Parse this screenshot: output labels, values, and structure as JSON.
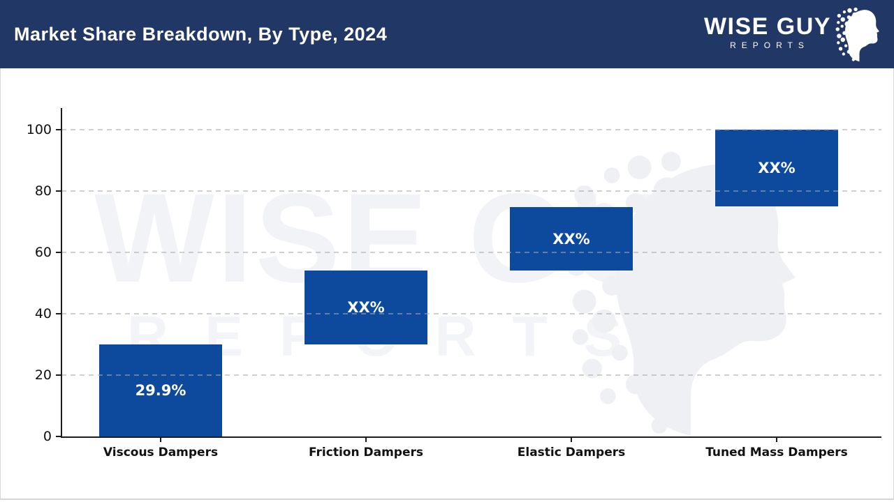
{
  "header": {
    "title": "Market Share Breakdown, By Type, 2024",
    "background_color": "#213765",
    "logo": {
      "line1": "WISE GUY",
      "line2": "REPORTS"
    }
  },
  "watermark": {
    "line1": "WISE GUY",
    "line2": "REPORTS"
  },
  "chart_data": {
    "type": "bar",
    "subtype": "waterfall",
    "title": "Market Share Breakdown, By Type, 2024",
    "categories": [
      "Viscous Dampers",
      "Friction Dampers",
      "Elastic Dampers",
      "Tuned Mass Dampers"
    ],
    "segments": [
      {
        "category": "Viscous Dampers",
        "start": 0,
        "end": 29.9,
        "label": "29.9%"
      },
      {
        "category": "Friction Dampers",
        "start": 29.9,
        "end": 54.0,
        "label": "XX%"
      },
      {
        "category": "Elastic Dampers",
        "start": 54.0,
        "end": 74.8,
        "label": "XX%"
      },
      {
        "category": "Tuned Mass Dampers",
        "start": 75.0,
        "end": 100,
        "label": "XX%"
      }
    ],
    "xlabel": "",
    "ylabel": "",
    "ylim": [
      0,
      100
    ],
    "yticks": [
      0,
      20,
      40,
      60,
      80,
      100
    ],
    "grid": "horizontal dashed gridlines drawn over bars",
    "legend": "none",
    "bar_color": "#0d4a9e",
    "bar_label_color": "#ffffff",
    "axis_color": "#1c1c1c",
    "gridline_color": "#d2d2d2",
    "tick_label_color": "#111111"
  }
}
